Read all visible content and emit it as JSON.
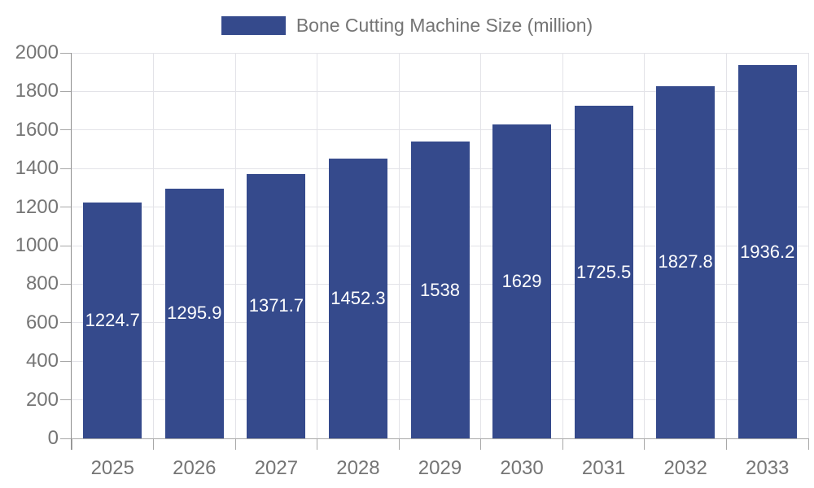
{
  "legend": {
    "label": "Bone Cutting Machine Size (million)"
  },
  "colors": {
    "bar": "#354A8C",
    "bar_label": "#FFFFFF",
    "axis_text": "#757575",
    "grid_line": "#E3E3E8",
    "axis_line": "#A8A8A8",
    "y_axis_line": "#8F8F8F",
    "background": "#FFFFFF"
  },
  "chart_data": {
    "type": "bar",
    "title": "Bone Cutting Machine Size (million)",
    "categories": [
      "2025",
      "2026",
      "2027",
      "2028",
      "2029",
      "2030",
      "2031",
      "2032",
      "2033"
    ],
    "series": [
      {
        "name": "Bone Cutting Machine Size (million)",
        "values": [
          1224.7,
          1295.9,
          1371.7,
          1452.3,
          1538,
          1629,
          1725.5,
          1827.8,
          1936.2
        ]
      }
    ],
    "xlabel": "",
    "ylabel": "",
    "ylim": [
      0,
      2000
    ],
    "y_ticks": [
      0,
      200,
      400,
      600,
      800,
      1000,
      1200,
      1400,
      1600,
      1800,
      2000
    ],
    "grid": true,
    "vertical_grid": true,
    "legend_position": "top-center",
    "bar_value_labels": "inside-center"
  }
}
